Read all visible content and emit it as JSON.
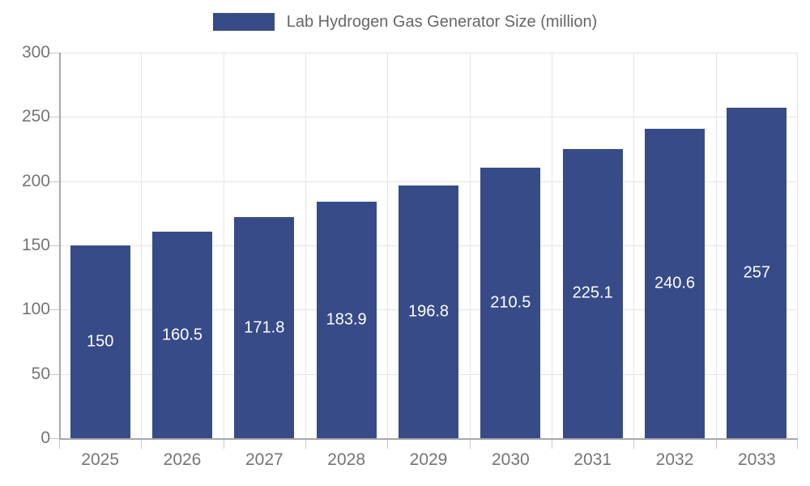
{
  "chart_data": {
    "type": "bar",
    "title": "Lab Hydrogen Gas Generator Size (million)",
    "legend_entries": [
      "Lab Hydrogen Gas Generator Size (million)"
    ],
    "legend_position": "top-center",
    "categories": [
      "2025",
      "2026",
      "2027",
      "2028",
      "2029",
      "2030",
      "2031",
      "2032",
      "2033"
    ],
    "series": [
      {
        "name": "Lab Hydrogen Gas Generator Size (million)",
        "values": [
          150,
          160.5,
          171.8,
          183.9,
          196.8,
          210.5,
          225.1,
          240.6,
          257
        ]
      }
    ],
    "value_labels": [
      "150",
      "160.5",
      "171.8",
      "183.9",
      "196.8",
      "210.5",
      "225.1",
      "240.6",
      "257"
    ],
    "xlabel": "",
    "ylabel": "",
    "ylim": [
      0,
      300
    ],
    "yticks": [
      0,
      50,
      100,
      150,
      200,
      250,
      300
    ],
    "grid": true
  },
  "colors": {
    "bar": "#374b88",
    "value_label": "#ffffff",
    "axis_label": "#757575",
    "legend_text": "#666666",
    "gridline": "#e4e4e4",
    "axis_line": "#a8a8a8",
    "tick": "#c9c9c9",
    "background": "#ffffff"
  }
}
